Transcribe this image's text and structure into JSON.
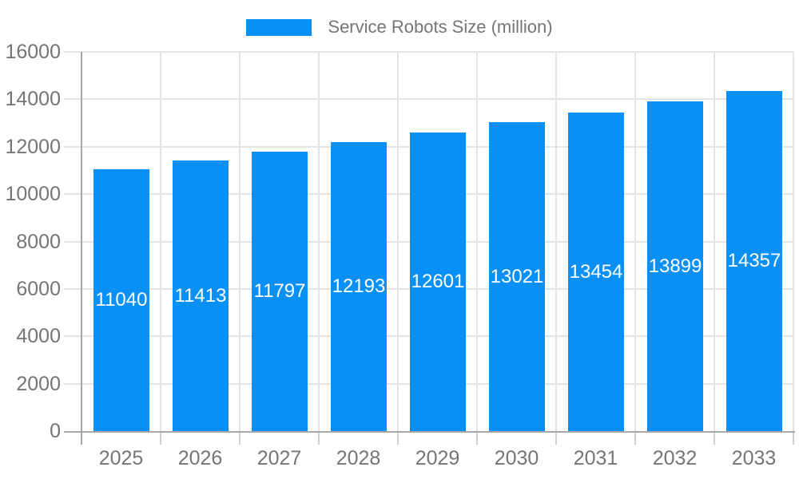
{
  "chart_data": {
    "type": "bar",
    "title": "",
    "categories": [
      "2025",
      "2026",
      "2027",
      "2028",
      "2029",
      "2030",
      "2031",
      "2032",
      "2033"
    ],
    "series": [
      {
        "name": "Service Robots Size (million)",
        "values": [
          11040,
          11413,
          11797,
          12193,
          12601,
          13021,
          13454,
          13899,
          14357
        ]
      }
    ],
    "xlabel": "",
    "ylabel": "",
    "ylim": [
      0,
      16000
    ],
    "yticks": [
      0,
      2000,
      4000,
      6000,
      8000,
      10000,
      12000,
      14000,
      16000
    ],
    "grid": true,
    "bar_labels": true,
    "legend_position": "top-center"
  },
  "colors": {
    "bar": "#0990f7",
    "bar_label": "#ffffff",
    "grid": "#e4e4e4",
    "band_tick": "#d0d0d0",
    "axis": "#a6a6a6",
    "tick_text": "#757575",
    "legend_text": "#757575",
    "background": "#ffffff"
  }
}
